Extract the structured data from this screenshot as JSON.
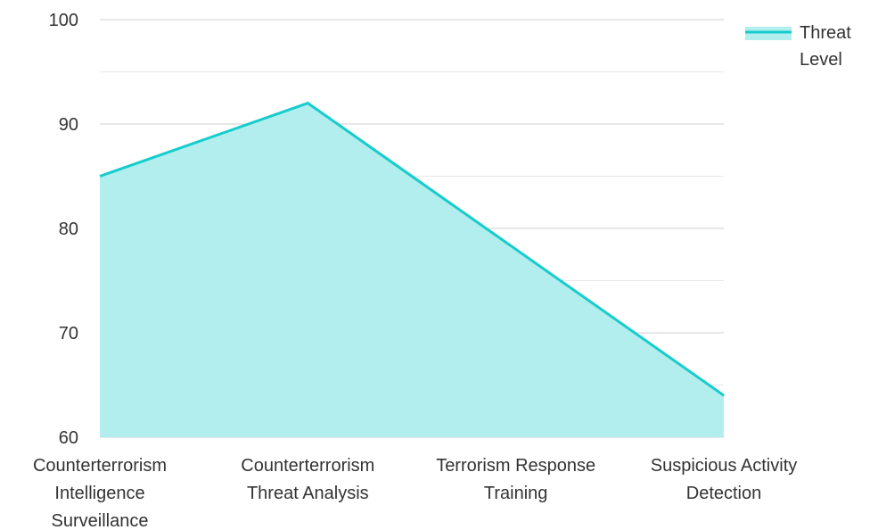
{
  "chart_data": {
    "type": "area",
    "categories": [
      "Counterterrorism Intelligence Surveillance",
      "Counterterrorism Threat Analysis",
      "Terrorism Response Training",
      "Suspicious Activity Detection"
    ],
    "series": [
      {
        "name": "Threat Level",
        "color": "#17cccc",
        "fill": "#b2eeee",
        "values": [
          85,
          92,
          78,
          64
        ]
      }
    ],
    "ylim": [
      60,
      100
    ],
    "yticks": [
      60,
      70,
      80,
      90,
      100
    ],
    "yticks_minor": [
      65,
      75,
      85,
      95
    ],
    "grid": true,
    "legend": "top-right"
  }
}
